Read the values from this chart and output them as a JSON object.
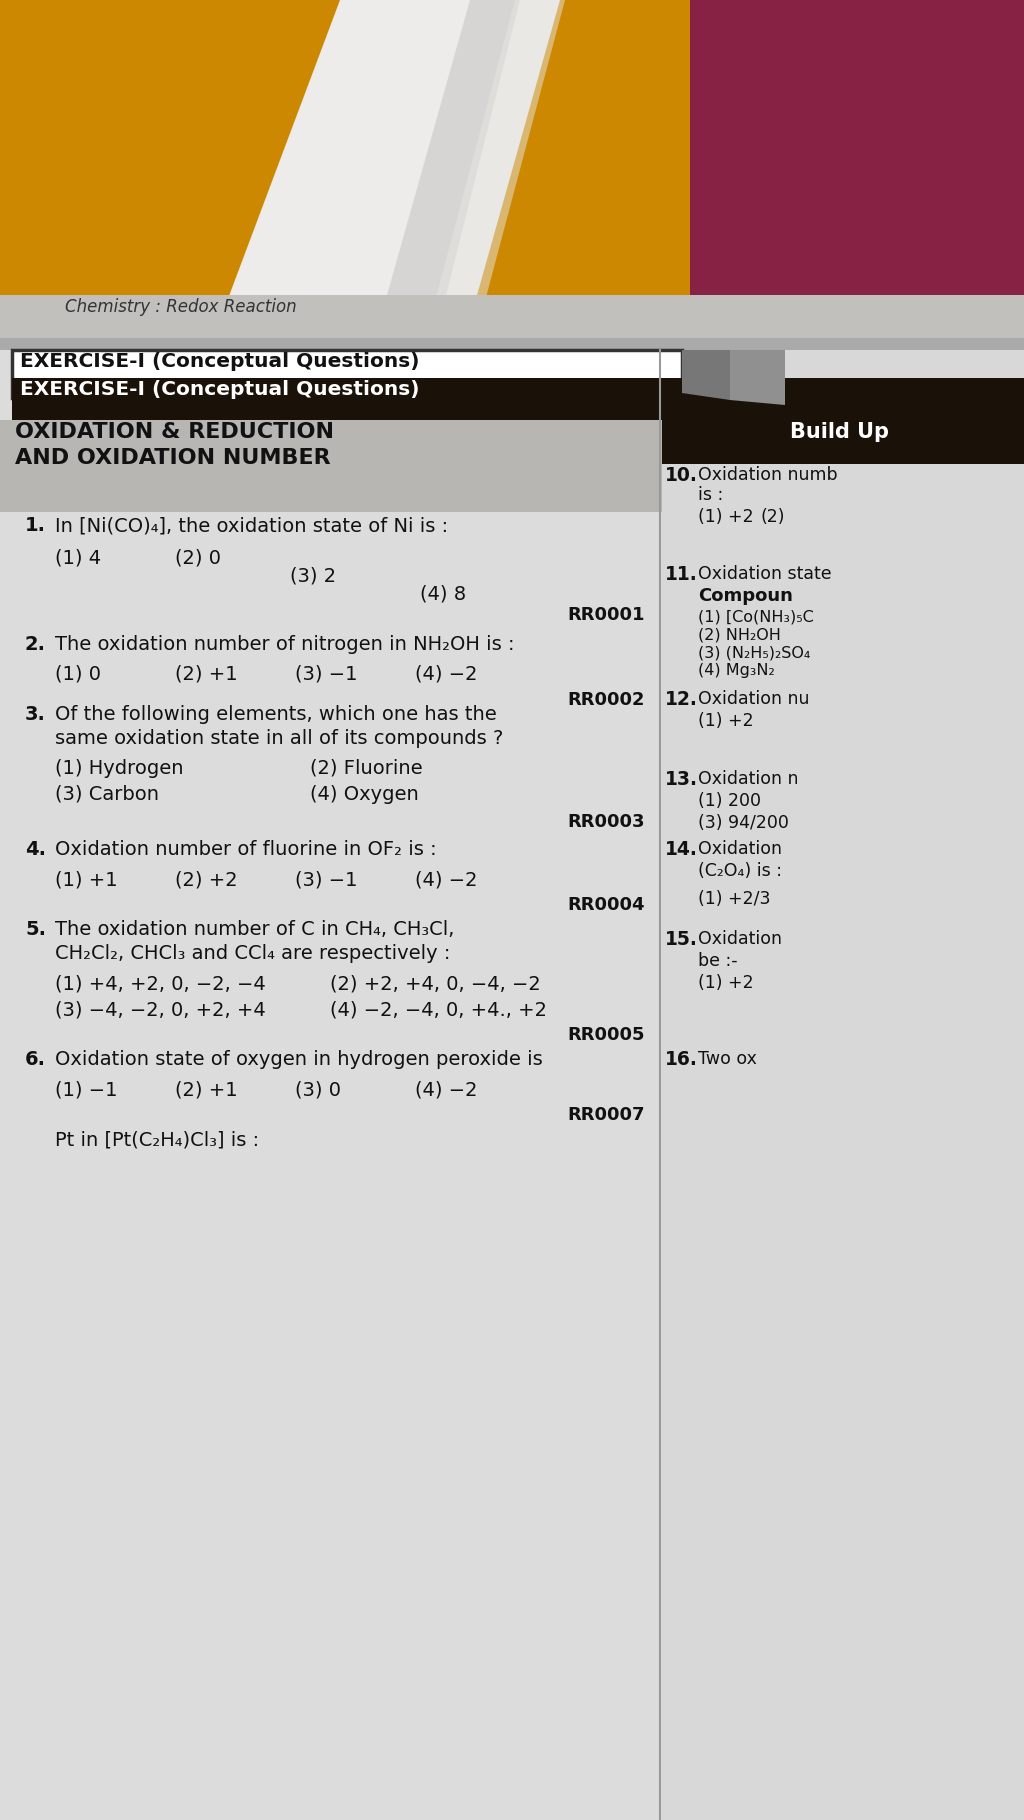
{
  "header_text": "Chemistry : Redox Reaction",
  "exercise_title": "EXERCISE-I (Conceptual Questions)",
  "section_title1": "OXIDATION & REDUCTION",
  "section_title2": "AND OXIDATION NUMBER",
  "build_up": "Build Up",
  "q1_num": "1.",
  "q1_text": "In [Ni(CO)₄], the oxidation state of Ni is :",
  "q1_opt1": "(1) 4",
  "q1_opt2": "(2) 0",
  "q1_opt3": "(3) 2",
  "q1_opt4": "(4) 8",
  "q1_code": "RR0001",
  "q2_num": "2.",
  "q2_text": "The oxidation number of nitrogen in NH₂OH is :",
  "q2_opt1": "(1) 0",
  "q2_opt2": "(2) +1",
  "q2_opt3": "(3) −1",
  "q2_opt4": "(4) −2",
  "q2_code": "RR0002",
  "q3_num": "3.",
  "q3_text1": "Of the following elements, which one has the",
  "q3_text2": "same oxidation state in all of its compounds ?",
  "q3_opt1": "(1) Hydrogen",
  "q3_opt2": "(2) Fluorine",
  "q3_opt3": "(3) Carbon",
  "q3_opt4": "(4) Oxygen",
  "q3_code": "RR0003",
  "q4_num": "4.",
  "q4_text": "Oxidation number of fluorine in OF₂ is :",
  "q4_opt1": "(1) +1",
  "q4_opt2": "(2) +2",
  "q4_opt3": "(3) −1",
  "q4_opt4": "(4) −2",
  "q4_code": "RR0004",
  "q5_num": "5.",
  "q5_text1": "The oxidation number of C in CH₄, CH₃Cl,",
  "q5_text2": "CH₂Cl₂, CHCl₃ and CCl₄ are respectively :",
  "q5_opt1": "(1) +4, +2, 0, −2, −4",
  "q5_opt2": "(2) +2, +4, 0, −4, −2",
  "q5_opt3": "(3) −4, −2, 0, +2, +4",
  "q5_opt4": "(4) −2, −4, 0, +4., +2",
  "q5_code": "RR0005",
  "q6_num": "6.",
  "q6_text": "Oxidation state of oxygen in hydrogen peroxide is",
  "q6_opt1": "(1) −1",
  "q6_opt2": "(2) +1",
  "q6_opt3": "(3) 0",
  "q6_opt4": "(4) −2",
  "q6_code": "RR0007",
  "q6_partial": "Pt in [Pt(C₂H₄)Cl₃] is :",
  "r10_num": "10.",
  "r10_l1": "Oxidation numb",
  "r10_l2": "is :",
  "r10_opt1": "(1) +2",
  "r10_opt2": "(2)",
  "r11_num": "11.",
  "r11_l1": "Oxidation state",
  "r11_l2": "Compoun",
  "r11_o1": "(1) [Co(NH₃)₅C",
  "r11_o2": "(2) NH₂OH",
  "r11_o3": "(3) (N₂H₅)₂SO₄",
  "r11_o4": "(4) Mg₃N₂",
  "r12_num": "12.",
  "r12_l1": "Oxidation nu",
  "r12_opt": "(1) +2",
  "r13_num": "13.",
  "r13_l1": "Oxidation n",
  "r13_o1": "(1) 200",
  "r13_o2": "(3) 94/200",
  "r14_num": "14.",
  "r14_l1": "Oxidation",
  "r14_l2": "(C₂O₄) is :",
  "r14_opt": "(1) +2/3",
  "r15_num": "15.",
  "r15_l1": "Oxidation",
  "r15_l2": "be :-",
  "r15_opt": "(1) +2",
  "r16_num": "16.",
  "r16_l1": "Two ox",
  "orange_color": "#CC8800",
  "red_color": "#882244",
  "page_light": "#D8D8D8",
  "page_dark": "#CACACA",
  "header_strip": "#BBBBBB",
  "dark_bar": "#1A1208",
  "section_bg": "#C0BEBE",
  "divider_color": "#AAAAAA"
}
